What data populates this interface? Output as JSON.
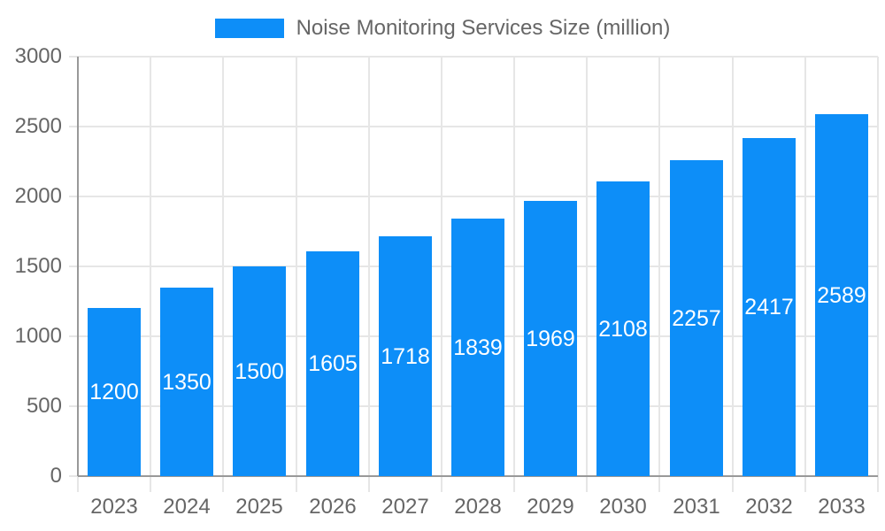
{
  "chart_data": {
    "type": "bar",
    "title": "Noise Monitoring Services Size (million)",
    "categories": [
      "2023",
      "2024",
      "2025",
      "2026",
      "2027",
      "2028",
      "2029",
      "2030",
      "2031",
      "2032",
      "2033"
    ],
    "values": [
      1200,
      1350,
      1500,
      1605,
      1718,
      1839,
      1969,
      2108,
      2257,
      2417,
      2589
    ],
    "series": [
      {
        "name": "Noise Monitoring Services Size (million)",
        "values": [
          1200,
          1350,
          1500,
          1605,
          1718,
          1839,
          1969,
          2108,
          2257,
          2417,
          2589
        ]
      }
    ],
    "xlabel": "",
    "ylabel": "",
    "ylim": [
      0,
      3000
    ],
    "yticks": [
      0,
      500,
      1000,
      1500,
      2000,
      2500,
      3000
    ],
    "grid": true,
    "legend_position": "top",
    "value_labels": "inside-center"
  },
  "legend": {
    "label": "Noise Monitoring Services Size (million)",
    "swatch_color": "#0d8ef8"
  },
  "colors": {
    "bar": "#0d8ef8",
    "value_label": "#ffffff",
    "axis_text": "#666666",
    "axis_line": "#999999",
    "gridline": "#e6e6e6",
    "background": "#ffffff"
  }
}
